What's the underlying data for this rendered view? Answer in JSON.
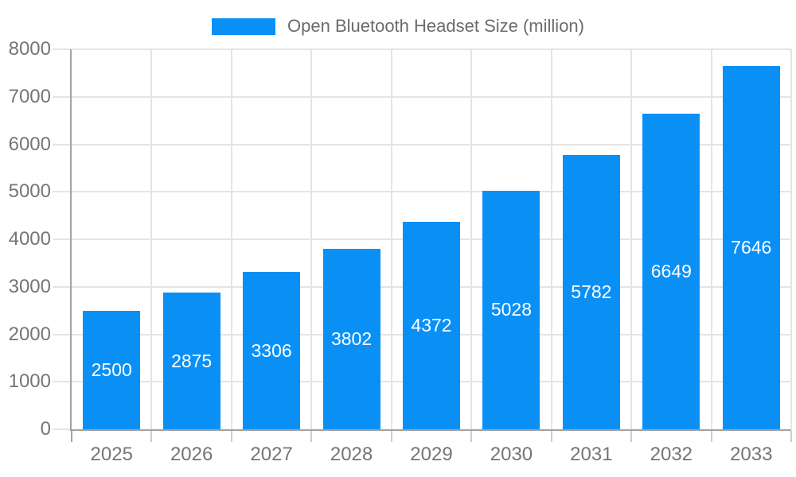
{
  "legend": {
    "label": "Open Bluetooth Headset Size (million)"
  },
  "colors": {
    "bar": "#0a90f5",
    "bar_label_text": "#ffffff",
    "grid": "#e4e4e4",
    "outer_tick": "#cccccc",
    "axis": "#a2a2a2",
    "tick_text": "#757575",
    "legend_text": "#6b6b6b"
  },
  "chart_data": {
    "type": "bar",
    "title": "Open Bluetooth Headset Size (million)",
    "categories": [
      "2025",
      "2026",
      "2027",
      "2028",
      "2029",
      "2030",
      "2031",
      "2032",
      "2033"
    ],
    "values": [
      2500,
      2875,
      3306,
      3802,
      4372,
      5028,
      5782,
      6649,
      7646
    ],
    "xlabel": "",
    "ylabel": "",
    "ylim": [
      0,
      8000
    ],
    "yticks": [
      0,
      1000,
      2000,
      3000,
      4000,
      5000,
      6000,
      7000,
      8000
    ],
    "grid": true,
    "legend_position": "top",
    "value_labels": "inside-center"
  }
}
